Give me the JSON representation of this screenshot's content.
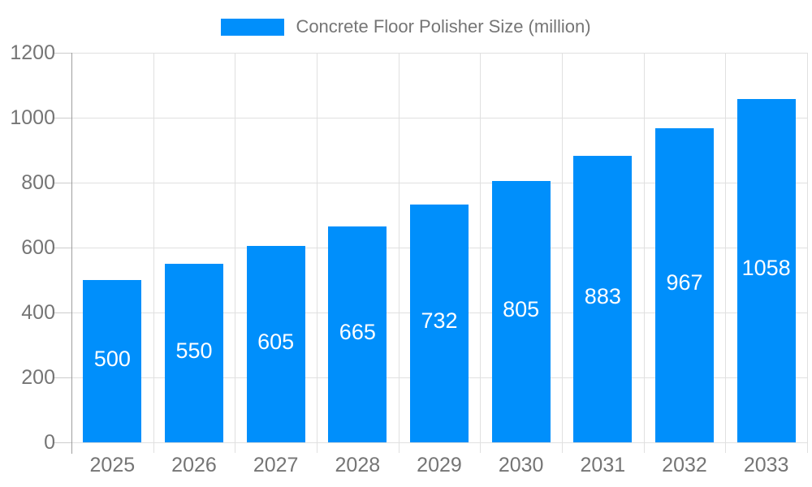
{
  "chart_data": {
    "type": "bar",
    "title": "Concrete Floor Polisher Size (million)",
    "categories": [
      "2025",
      "2026",
      "2027",
      "2028",
      "2029",
      "2030",
      "2031",
      "2032",
      "2033"
    ],
    "values": [
      500,
      550,
      605,
      665,
      732,
      805,
      883,
      967,
      1058
    ],
    "xlabel": "",
    "ylabel": "",
    "ylim": [
      0,
      1200
    ],
    "yticks": [
      0,
      200,
      400,
      600,
      800,
      1000,
      1200
    ],
    "grid": true,
    "bar_labels_inside": true,
    "legend_position": "top-center",
    "colors": {
      "bar": "#008FFB",
      "bar_label": "#ffffff",
      "grid": "#e0e0e0",
      "tick": "#cccccc",
      "axis": "#9e9e9e",
      "text": "#757575",
      "background": "#ffffff"
    }
  }
}
